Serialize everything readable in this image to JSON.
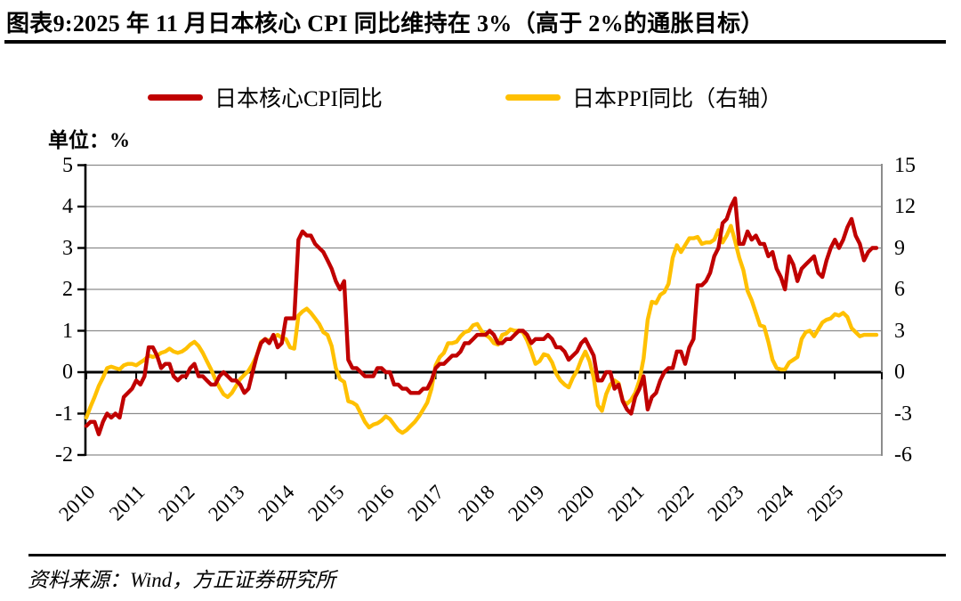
{
  "header": {
    "title": "图表9:2025 年 11 月日本核心 CPI 同比维持在 3%（高于 2%的通胀目标）"
  },
  "legend": [
    {
      "label": "日本核心CPI同比",
      "color": "#C00000"
    },
    {
      "label": "日本PPI同比（右轴）",
      "color": "#FFC000"
    }
  ],
  "unit_label": "单位：%",
  "footer": {
    "source": "资料来源：Wind，方正证券研究所"
  },
  "chart_data": {
    "type": "line",
    "title": "图表9:2025 年 11 月日本核心 CPI 同比维持在 3%（高于 2%的通胀目标）",
    "unit": "%",
    "grid": "horizontal-on",
    "legend_position": "top",
    "x_frequency": "monthly",
    "x_range": [
      "2010-01",
      "2025-11"
    ],
    "x_tick_labels": [
      "2010",
      "2011",
      "2012",
      "2013",
      "2014",
      "2015",
      "2016",
      "2017",
      "2018",
      "2019",
      "2020",
      "2021",
      "2022",
      "2023",
      "2024",
      "2025"
    ],
    "left_axis": {
      "min": -2,
      "max": 5,
      "ticks": [
        5,
        4,
        3,
        2,
        1,
        0,
        -1,
        -2
      ]
    },
    "right_axis": {
      "min": -6,
      "max": 15,
      "ticks": [
        15,
        12,
        9,
        6,
        3,
        0,
        -3,
        -6
      ]
    },
    "colors": {
      "grid": "#8c8c8c",
      "zero_line": "#000000",
      "cpi_red": "#C00000",
      "ppi_yellow": "#FFC000"
    },
    "series": [
      {
        "name": "日本核心CPI同比",
        "axis": "left",
        "color": "#C00000",
        "values": [
          -1.3,
          -1.2,
          -1.2,
          -1.5,
          -1.2,
          -1.0,
          -1.1,
          -1.0,
          -1.1,
          -0.6,
          -0.5,
          -0.4,
          -0.2,
          -0.3,
          -0.1,
          0.6,
          0.6,
          0.4,
          0.1,
          0.2,
          0.2,
          -0.1,
          -0.2,
          -0.1,
          -0.1,
          0.1,
          0.2,
          -0.1,
          -0.1,
          -0.2,
          -0.3,
          -0.3,
          -0.1,
          0.0,
          -0.1,
          -0.2,
          -0.2,
          -0.3,
          -0.5,
          -0.4,
          0.0,
          0.4,
          0.7,
          0.8,
          0.7,
          0.9,
          0.6,
          0.7,
          1.3,
          1.3,
          1.3,
          3.2,
          3.4,
          3.3,
          3.3,
          3.1,
          3.0,
          2.9,
          2.7,
          2.5,
          2.2,
          2.0,
          2.2,
          0.3,
          0.1,
          0.1,
          0.0,
          -0.1,
          -0.1,
          -0.1,
          0.1,
          0.1,
          0.0,
          0.0,
          -0.3,
          -0.3,
          -0.4,
          -0.4,
          -0.5,
          -0.5,
          -0.5,
          -0.4,
          -0.4,
          -0.2,
          0.1,
          0.2,
          0.2,
          0.3,
          0.4,
          0.4,
          0.5,
          0.7,
          0.7,
          0.8,
          0.9,
          0.9,
          0.9,
          1.0,
          0.9,
          0.7,
          0.7,
          0.8,
          0.8,
          0.9,
          1.0,
          1.0,
          0.9,
          0.7,
          0.8,
          0.8,
          0.8,
          0.9,
          0.8,
          0.6,
          0.6,
          0.5,
          0.3,
          0.4,
          0.5,
          0.7,
          0.8,
          0.6,
          0.4,
          -0.2,
          -0.2,
          0.0,
          0.0,
          -0.4,
          -0.3,
          -0.7,
          -0.9,
          -1.0,
          -0.6,
          -0.4,
          -0.1,
          -0.9,
          -0.6,
          -0.5,
          -0.2,
          0.0,
          0.1,
          0.1,
          0.5,
          0.5,
          0.2,
          0.6,
          0.8,
          2.1,
          2.1,
          2.2,
          2.4,
          2.8,
          3.0,
          3.6,
          3.7,
          4.0,
          4.2,
          3.1,
          3.1,
          3.4,
          3.2,
          3.3,
          3.1,
          3.1,
          2.8,
          2.9,
          2.5,
          2.3,
          2.0,
          2.8,
          2.6,
          2.2,
          2.5,
          2.6,
          2.7,
          2.8,
          2.4,
          2.3,
          2.7,
          3.0,
          3.2,
          3.0,
          3.2,
          3.5,
          3.7,
          3.3,
          3.1,
          2.7,
          2.9,
          3.0,
          3.0
        ]
      },
      {
        "name": "日本PPI同比（右轴）",
        "axis": "right",
        "color": "#FFC000",
        "values": [
          -3.3,
          -2.5,
          -1.8,
          -1.0,
          -0.4,
          0.3,
          0.4,
          0.3,
          0.2,
          0.5,
          0.6,
          0.6,
          0.5,
          0.7,
          0.9,
          1.2,
          1.1,
          1.2,
          1.4,
          1.5,
          1.7,
          1.5,
          1.4,
          1.5,
          1.7,
          2.0,
          2.2,
          1.9,
          1.4,
          0.8,
          0.2,
          -0.5,
          -1.1,
          -1.6,
          -1.8,
          -1.5,
          -1.0,
          -0.5,
          -0.2,
          0.1,
          0.6,
          1.2,
          2.2,
          2.4,
          2.3,
          2.5,
          2.7,
          2.5,
          2.4,
          1.8,
          1.7,
          4.1,
          4.4,
          4.6,
          4.3,
          3.9,
          3.5,
          2.9,
          2.7,
          1.9,
          0.3,
          -0.5,
          -0.7,
          -2.1,
          -2.2,
          -2.4,
          -3.0,
          -3.6,
          -4.0,
          -3.8,
          -3.7,
          -3.5,
          -3.2,
          -3.4,
          -3.8,
          -4.2,
          -4.4,
          -4.2,
          -3.9,
          -3.6,
          -3.2,
          -2.7,
          -2.2,
          -1.2,
          0.5,
          1.1,
          1.4,
          2.1,
          2.1,
          2.2,
          2.6,
          2.9,
          3.0,
          3.4,
          3.5,
          3.0,
          2.7,
          2.5,
          2.1,
          2.0,
          2.7,
          2.8,
          3.1,
          3.0,
          3.0,
          2.9,
          2.3,
          1.5,
          0.6,
          0.8,
          1.3,
          1.2,
          0.7,
          -0.1,
          -0.6,
          -0.9,
          -1.1,
          -0.4,
          0.1,
          0.9,
          1.5,
          0.8,
          -0.4,
          -2.4,
          -2.8,
          -1.6,
          -0.9,
          -0.6,
          -0.8,
          -2.1,
          -2.3,
          -2.0,
          -1.5,
          -0.6,
          1.0,
          3.8,
          5.1,
          5.0,
          5.6,
          5.8,
          6.4,
          8.3,
          9.2,
          8.7,
          9.2,
          9.7,
          9.7,
          9.8,
          9.3,
          9.4,
          9.4,
          9.6,
          10.3,
          9.4,
          9.9,
          10.6,
          9.5,
          8.3,
          7.4,
          5.9,
          5.2,
          4.3,
          3.4,
          3.3,
          2.2,
          0.9,
          0.3,
          0.2,
          0.2,
          0.7,
          0.9,
          1.1,
          2.4,
          2.9,
          3.0,
          2.6,
          3.1,
          3.6,
          3.8,
          3.9,
          4.2,
          4.1,
          4.3,
          4.0,
          3.2,
          2.9,
          2.6,
          2.7,
          2.7,
          2.7,
          2.7
        ]
      }
    ]
  }
}
